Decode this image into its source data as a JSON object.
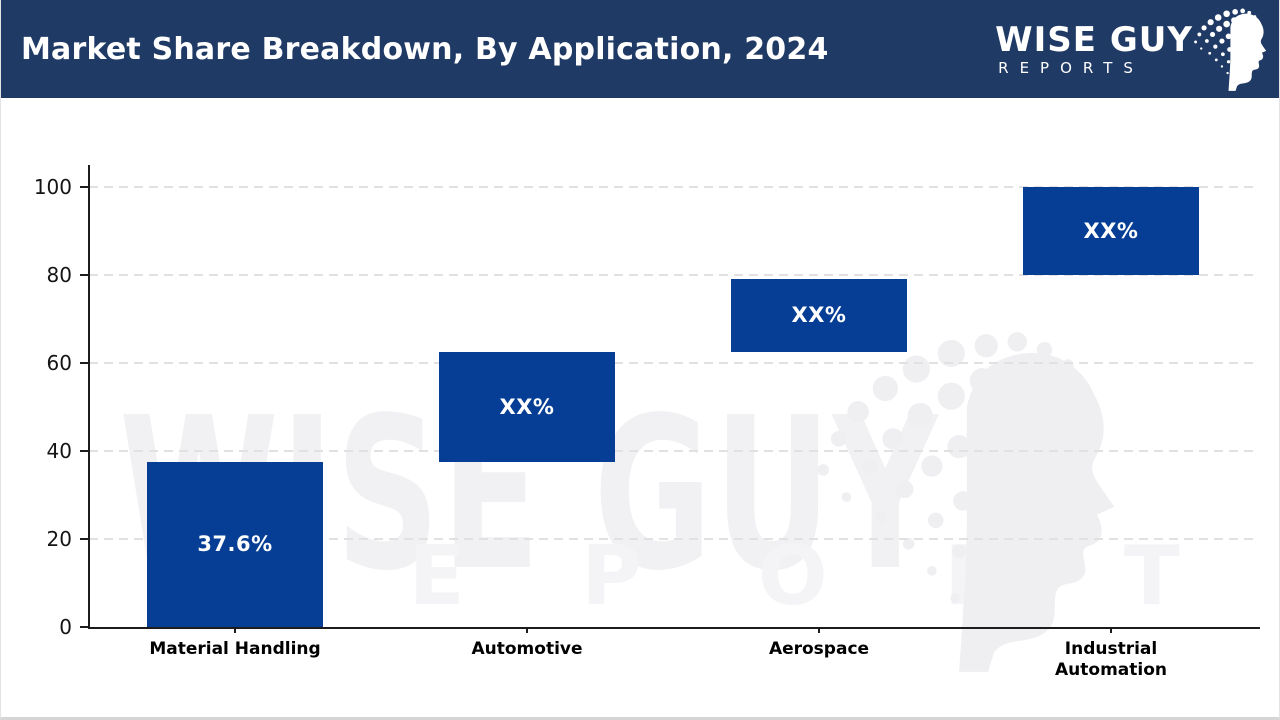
{
  "header": {
    "title": "Market Share Breakdown, By Application, 2024",
    "logo": {
      "line1": "WISE GUY",
      "line2": "REPORTS"
    }
  },
  "watermark": {
    "line1": "WISE GUY",
    "line2": "R E P O R T S"
  },
  "chart_data": {
    "type": "bar",
    "subtype": "waterfall-floating-bars",
    "title": "Market Share Breakdown, By Application, 2024",
    "categories": [
      "Material Handling",
      "Automotive",
      "Aerospace",
      "Industrial Automation"
    ],
    "bars": [
      {
        "category": "Material Handling",
        "label_lines": [
          "Material Handling"
        ],
        "start": 0,
        "end": 37.6,
        "value_label": "37.6%"
      },
      {
        "category": "Automotive",
        "label_lines": [
          "Automotive"
        ],
        "start": 37.6,
        "end": 62.6,
        "value_label": "XX%"
      },
      {
        "category": "Aerospace",
        "label_lines": [
          "Aerospace"
        ],
        "start": 62.6,
        "end": 79,
        "value_label": "XX%"
      },
      {
        "category": "Industrial Automation",
        "label_lines": [
          "Industrial",
          "Automation"
        ],
        "start": 80,
        "end": 100,
        "value_label": "XX%"
      }
    ],
    "xlabel": "",
    "ylabel": "",
    "ylim": [
      0,
      100
    ],
    "yticks": [
      0,
      20,
      40,
      60,
      80,
      100
    ],
    "grid": "horizontal-dashed",
    "legend": "none",
    "colors": {
      "bar": "#053e94",
      "bar_label": "#ffffff",
      "axis": "#1c1c1c",
      "gridline": "#e1e1e1",
      "header_bg": "#203a66",
      "watermark": "#f1f1f3"
    }
  }
}
